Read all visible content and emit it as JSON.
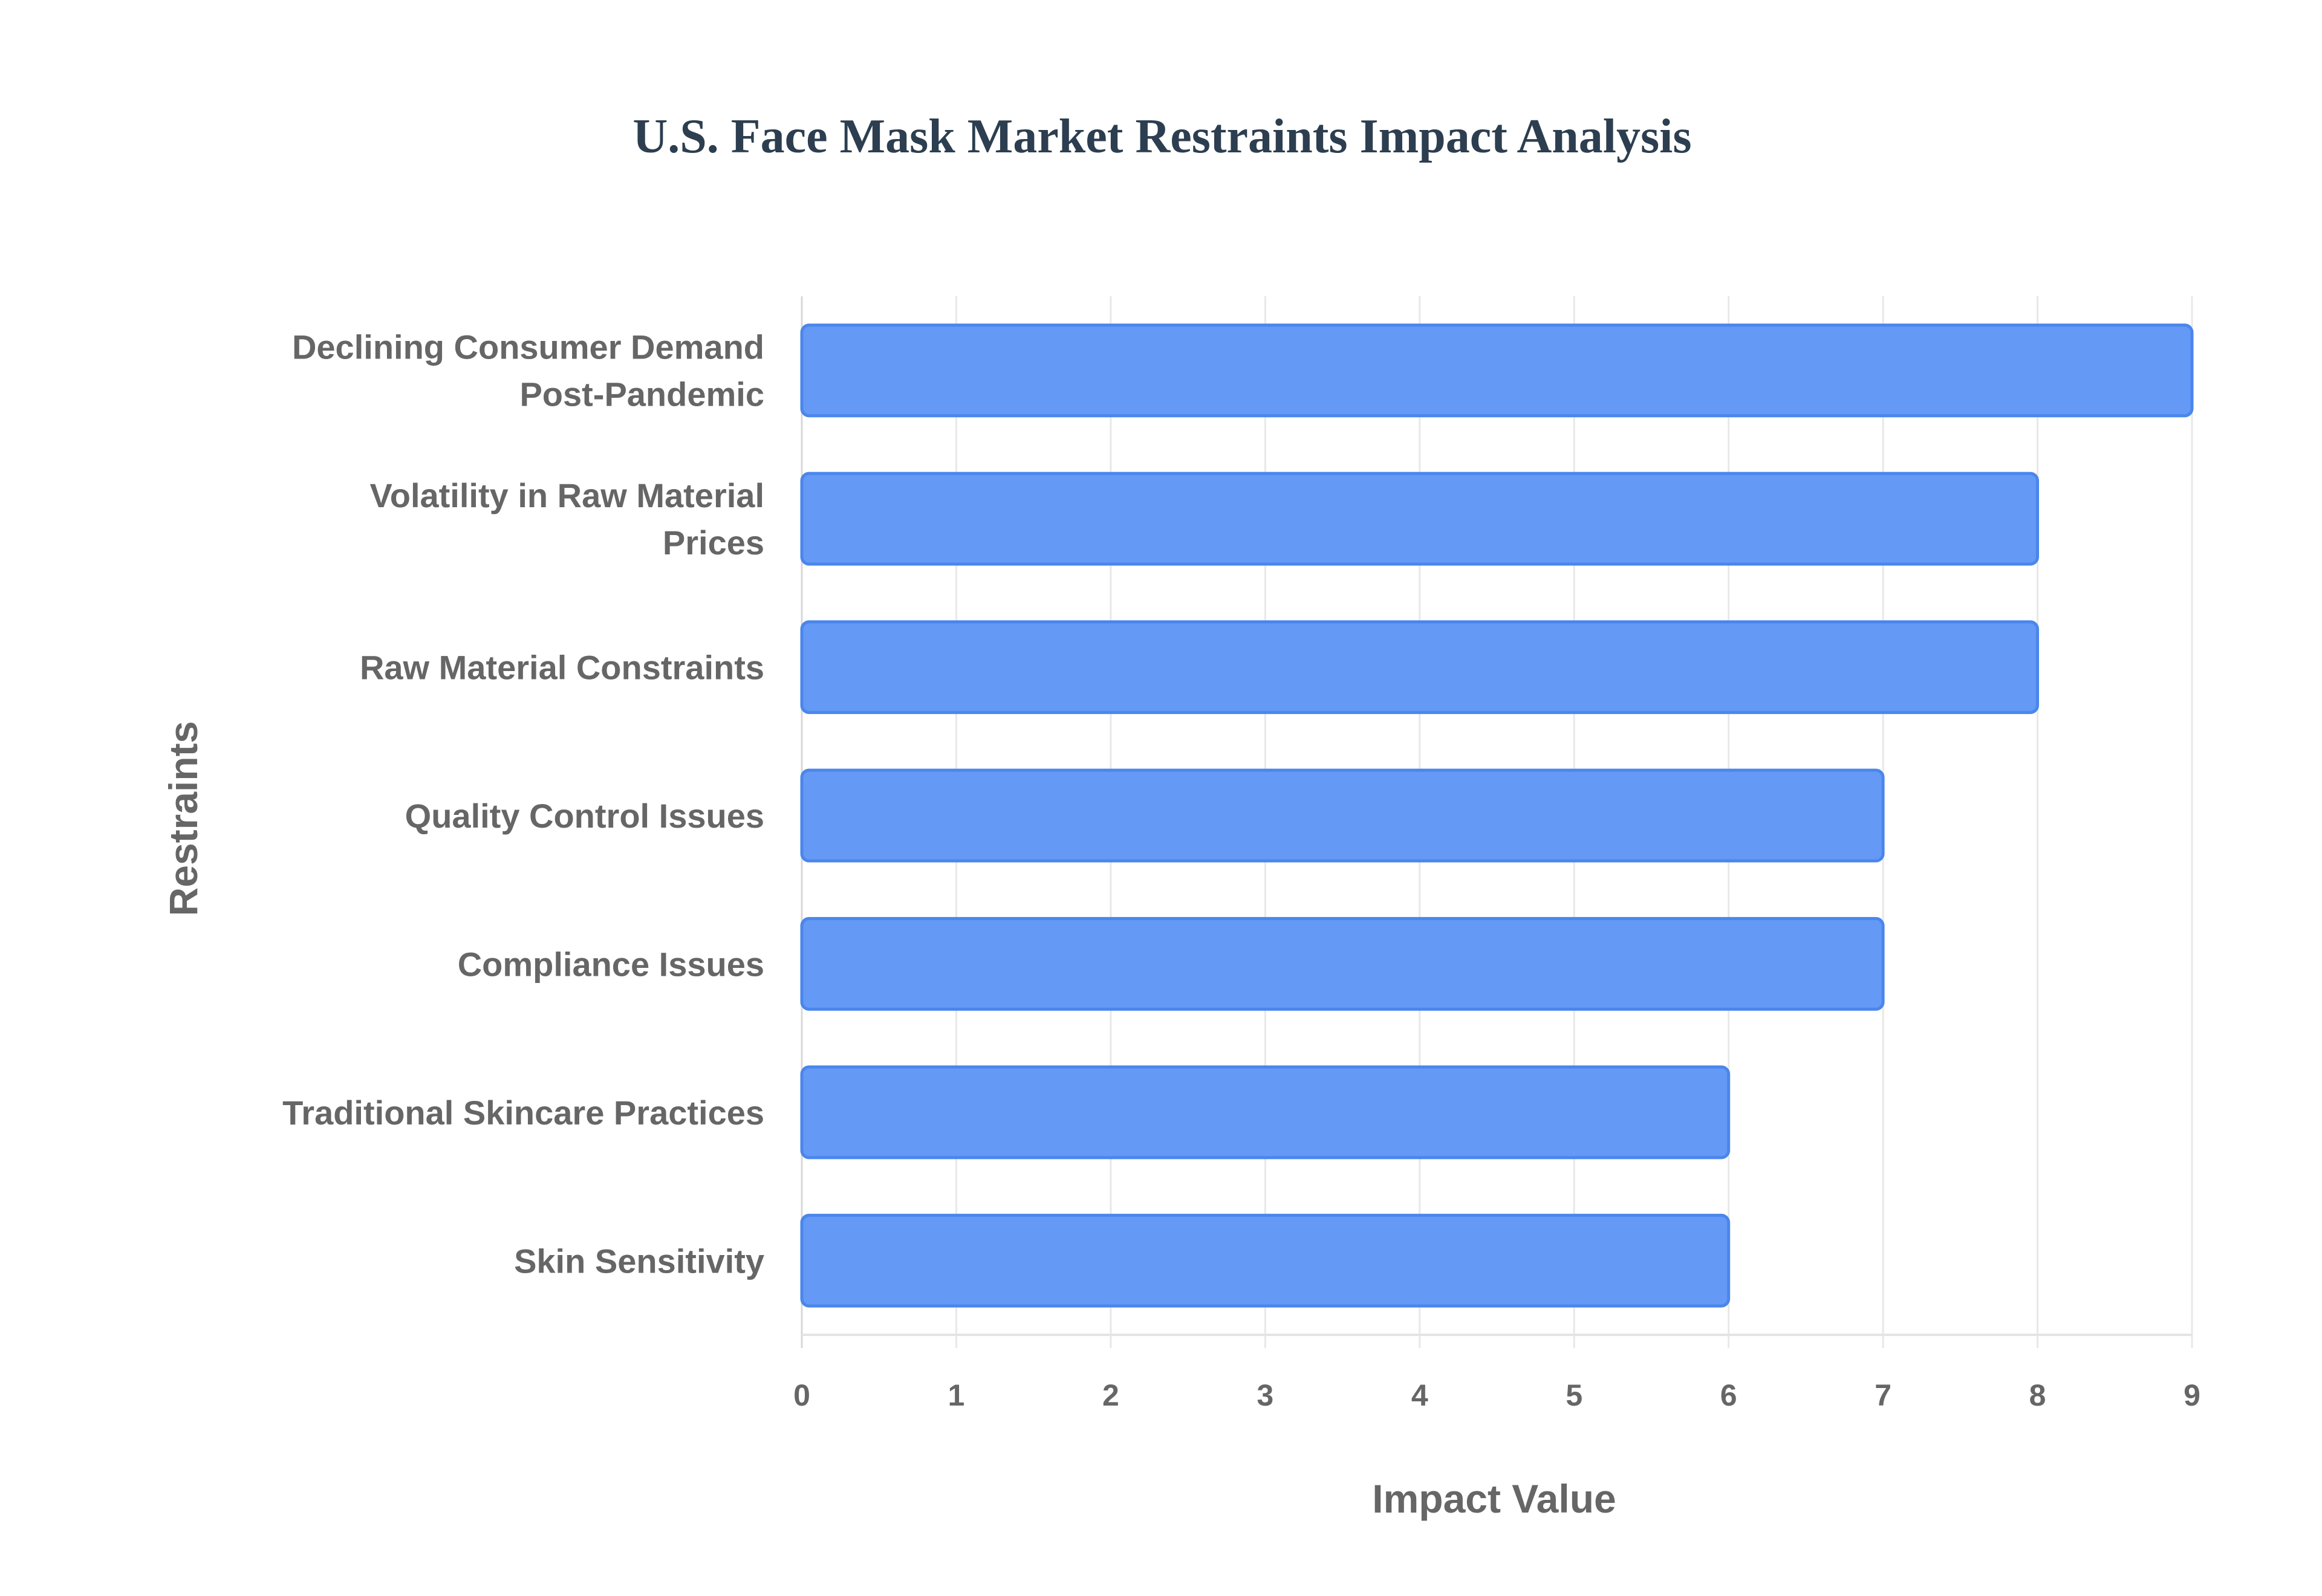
{
  "chart_data": {
    "type": "bar",
    "orientation": "horizontal",
    "title": "U.S. Face Mask Market Restraints Impact Analysis",
    "xlabel": "Impact Value",
    "ylabel": "Restraints",
    "xlim": [
      0,
      9
    ],
    "xticks": [
      "0",
      "1",
      "2",
      "3",
      "4",
      "5",
      "6",
      "7",
      "8",
      "9"
    ],
    "grid": true,
    "categories": [
      [
        "Declining Consumer Demand",
        "Post-Pandemic"
      ],
      [
        "Volatility in Raw Material",
        "Prices"
      ],
      [
        "Raw Material Constraints"
      ],
      [
        "Quality Control Issues"
      ],
      [
        "Compliance Issues"
      ],
      [
        "Traditional Skincare Practices"
      ],
      [
        "Skin Sensitivity"
      ]
    ],
    "values": [
      9,
      8,
      8,
      7,
      7,
      6,
      6
    ],
    "bar_color": "#6499f5",
    "bar_border": "#4a86ec"
  }
}
